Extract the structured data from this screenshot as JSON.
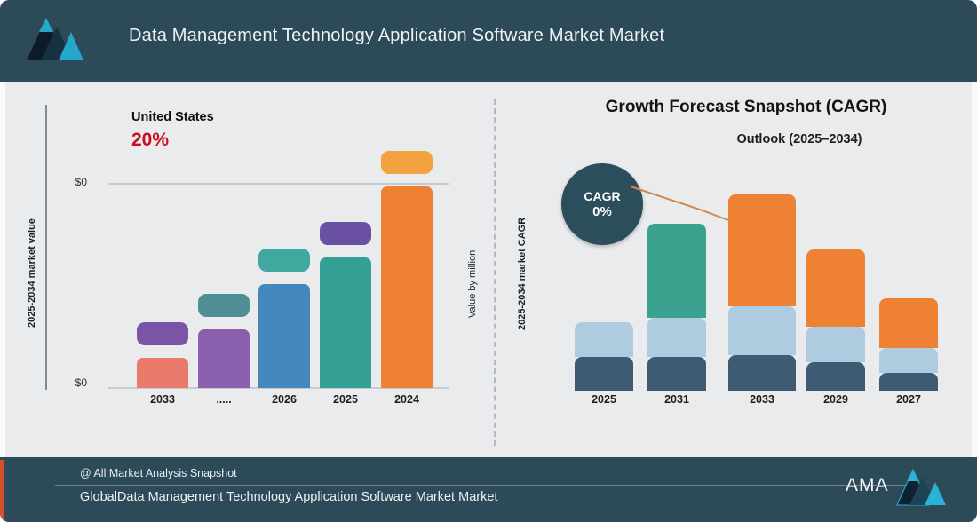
{
  "header": {
    "title": "Data Management Technology Application Software Market Market",
    "logo_alt": "AMA"
  },
  "left_chart": {
    "region_label": "United States",
    "growth_value": "20%",
    "y_axis_label_left": "2025-2034 market value",
    "y_axis_label_right": "Value by million",
    "y_tick_top": "$0",
    "y_tick_bottom": "$0"
  },
  "right_chart": {
    "title": "Growth Forecast Snapshot (CAGR)",
    "subtitle": "Outlook (2025–2034)",
    "y_axis_label": "2025-2034 market CAGR",
    "badge_line1": "CAGR",
    "badge_line2": "0%",
    "annotation": "0"
  },
  "footer": {
    "note": "@ All Market Analysis Snapshot",
    "source": "GlobalData Management Technology Application Software Market Market",
    "brand": "AMA"
  },
  "colors": {
    "background": "#2d4a59",
    "panel": "#e9ebec",
    "highlight_red": "#c60f1f",
    "footer_accent": "#d1512c",
    "badge": "#2b4d5c",
    "connector": "#cf8a52"
  },
  "chart_data": [
    {
      "type": "bar",
      "title": "United States",
      "highlight": "20%",
      "xlabel": "",
      "ylabel": "2025-2034 market value",
      "ylabel_right": "Value by million",
      "yticks": [
        "$0",
        "$0"
      ],
      "categories": [
        "2033",
        ".....",
        "2026",
        "2025",
        "2024"
      ],
      "values": [
        34,
        66,
        117,
        147,
        227
      ],
      "units": "relative height (axis unlabeled, both ticks $0)",
      "bar_colors": [
        "#e9796b",
        "#8a5fae",
        "#4389bd",
        "#33a093",
        "#ee8034"
      ],
      "cap_colors": [
        "#7a55a6",
        "#4f8e95",
        "#41a8a0",
        "#6950a2",
        "#f2a23e"
      ],
      "grid": "top and baseline only",
      "legend": "none"
    },
    {
      "type": "stacked-bar",
      "title": "Growth Forecast Snapshot (CAGR)",
      "subtitle": "Outlook (2025–2034)",
      "ylabel": "2025-2034 market CAGR",
      "categories": [
        "2025",
        "2031",
        "2033",
        "2029",
        "2027"
      ],
      "series": [
        {
          "name": "bottom",
          "color": "#3f5b73",
          "values": [
            38,
            38,
            40,
            32,
            20
          ]
        },
        {
          "name": "middle",
          "color": "#aecbdf",
          "values": [
            39,
            44,
            55,
            40,
            28
          ]
        },
        {
          "name": "top",
          "colors": [
            "#aecbdf",
            "#3aa28e",
            "#ee8133",
            "#ee8133",
            "#ee8133"
          ],
          "values": [
            0,
            106,
            126,
            87,
            56
          ]
        }
      ],
      "units": "relative height (axis unlabeled)",
      "annotation": {
        "text": "0",
        "target_category": "2033"
      },
      "badge": {
        "line1": "CAGR",
        "line2": "0%"
      },
      "legend": "none"
    }
  ]
}
